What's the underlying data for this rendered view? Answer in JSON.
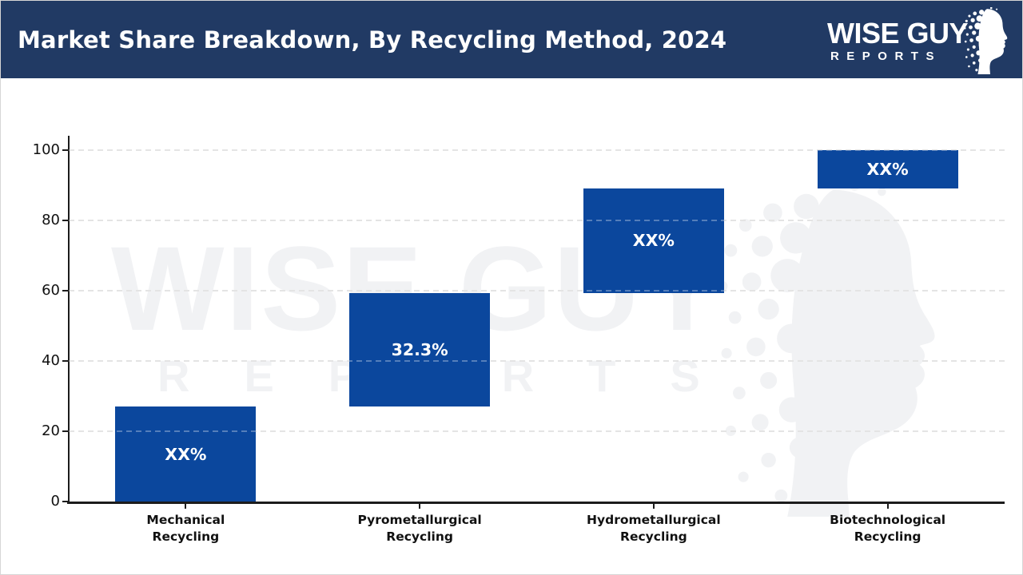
{
  "header": {
    "title": "Market Share Breakdown, By Recycling Method, 2024",
    "logo": {
      "line1": "WISE GUY",
      "line2": "REPORTS"
    }
  },
  "watermark": {
    "line1": "WISE GUY",
    "line2": "REPORTS"
  },
  "colors": {
    "header_bg": "#213a64",
    "title_text": "#ffffff",
    "bar": "#0b479d",
    "bar_label_text": "#ffffff",
    "grid": "#d9d9d9",
    "axis": "#1c1c1c",
    "tick_text": "#111111",
    "watermark": "#f1f2f4",
    "border": "#d6d6d6"
  },
  "chart_data": {
    "type": "bar",
    "subtype": "waterfall",
    "title": "Market Share Breakdown, By Recycling Method, 2024",
    "categories": [
      "Mechanical\nRecycling",
      "Pyrometallurgical\nRecycling",
      "Hydrometallurgical\nRecycling",
      "Biotechnological\nRecycling"
    ],
    "segments": [
      {
        "start": 0,
        "end": 27.0,
        "label": "XX%"
      },
      {
        "start": 27.0,
        "end": 59.3,
        "label": "32.3%"
      },
      {
        "start": 59.3,
        "end": 89.2,
        "label": "XX%"
      },
      {
        "start": 89.2,
        "end": 100,
        "label": "XX%"
      }
    ],
    "xlabel": "",
    "ylabel": "",
    "ylim": [
      0,
      104
    ],
    "yticks": [
      0,
      20,
      40,
      60,
      80,
      100
    ],
    "grid": "horizontal-dashed",
    "legend": "none"
  }
}
